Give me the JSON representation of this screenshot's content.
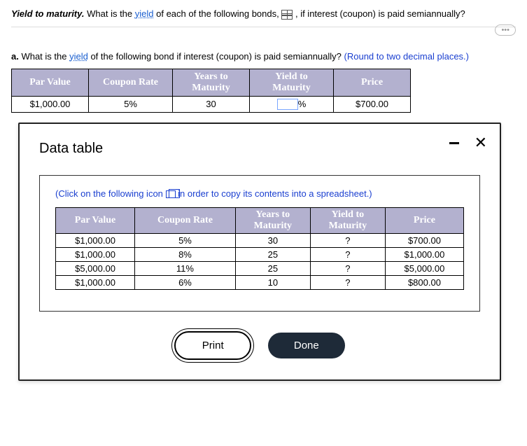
{
  "question": {
    "title_bold_italic": "Yield to maturity.",
    "text_before_link": " What is the ",
    "link_word": "yield",
    "text_after_link": " of each of the following bonds, ",
    "text_after_icon": " , if interest (coupon) is paid semiannually?"
  },
  "ellipsis": "•••",
  "part_a": {
    "label": "a.",
    "text_before_link": " What is the ",
    "link_word": "yield",
    "text_after_link": " of the following bond if interest (coupon) is paid semiannually?  ",
    "round_hint": "(Round to two decimal places.)"
  },
  "main_table": {
    "headers": [
      "Par Value",
      "Coupon Rate",
      "Years to\nMaturity",
      "Yield to\nMaturity",
      "Price"
    ],
    "row": {
      "par": "$1,000.00",
      "coupon": "5%",
      "years": "30",
      "yield_suffix": "%",
      "price": "$700.00"
    },
    "header_bg": "#b3b1cf",
    "header_color": "#ffffff",
    "border_color": "#000000"
  },
  "modal": {
    "title": "Data table",
    "copy_hint_before": "(Click on the following icon ",
    "copy_hint_after": " in order to copy its contents into a spreadsheet.)",
    "headers": [
      "Par Value",
      "Coupon Rate",
      "Years to\nMaturity",
      "Yield to\nMaturity",
      "Price"
    ],
    "rows": [
      [
        "$1,000.00",
        "5%",
        "30",
        "?",
        "$700.00"
      ],
      [
        "$1,000.00",
        "8%",
        "25",
        "?",
        "$1,000.00"
      ],
      [
        "$5,000.00",
        "11%",
        "25",
        "?",
        "$5,000.00"
      ],
      [
        "$1,000.00",
        "6%",
        "10",
        "?",
        "$800.00"
      ]
    ],
    "print_label": "Print",
    "done_label": "Done",
    "header_bg": "#b3b1cf",
    "header_color": "#ffffff",
    "done_bg": "#1e2a38",
    "done_color": "#ffffff"
  }
}
